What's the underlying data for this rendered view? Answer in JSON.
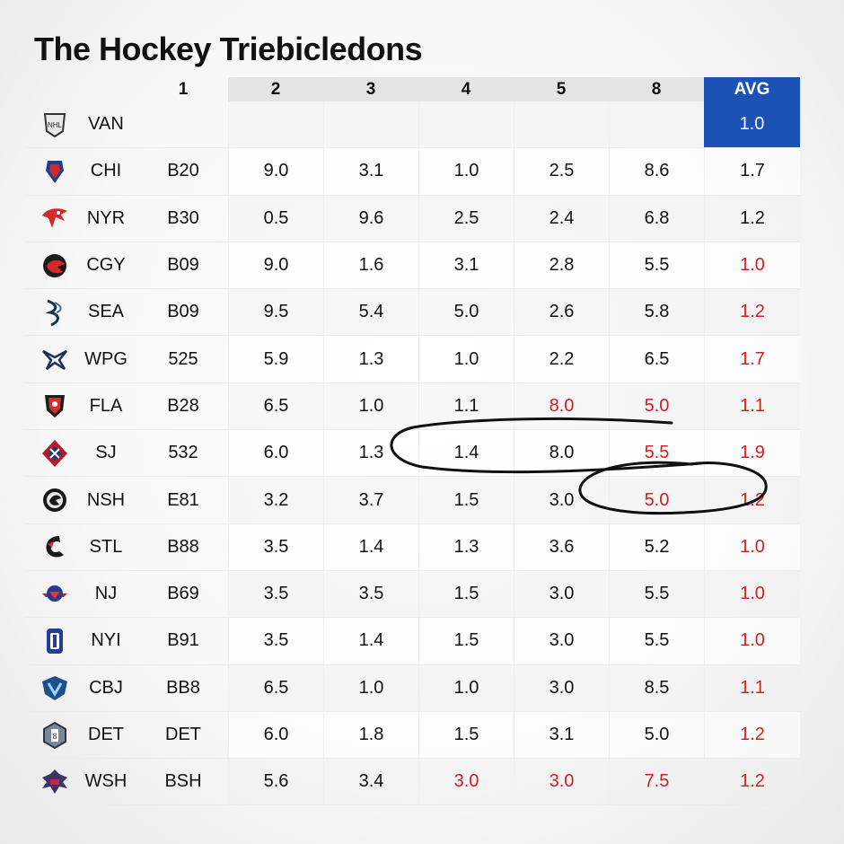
{
  "title": "The Hockey Triebicledons",
  "columns": [
    "1",
    "2",
    "3",
    "4",
    "5",
    "8",
    "AVG"
  ],
  "colors": {
    "accent": "#1b52b5",
    "highlight_red": "#d21f1f",
    "ink": "#111111"
  },
  "header_team": {
    "abbr": "VAN",
    "avg": "1.0",
    "logo_icon": "league-shield-icon"
  },
  "rows": [
    {
      "abbr": "CHI",
      "code": "B20",
      "values": [
        "9.0",
        "3.1",
        "1.0",
        "2.5",
        "8.6"
      ],
      "avg": "1.7",
      "red": [],
      "avg_red": false,
      "logo_icon": "chi-logo-icon"
    },
    {
      "abbr": "NYR",
      "code": "B30",
      "values": [
        "0.5",
        "9.6",
        "2.5",
        "2.4",
        "6.8"
      ],
      "avg": "1.2",
      "red": [],
      "avg_red": false,
      "logo_icon": "nyr-logo-icon"
    },
    {
      "abbr": "CGY",
      "code": "B09",
      "values": [
        "9.0",
        "1.6",
        "3.1",
        "2.8",
        "5.5"
      ],
      "avg": "1.0",
      "red": [],
      "avg_red": true,
      "logo_icon": "cgy-logo-icon"
    },
    {
      "abbr": "SEA",
      "code": "B09",
      "values": [
        "9.5",
        "5.4",
        "5.0",
        "2.6",
        "5.8"
      ],
      "avg": "1.2",
      "red": [],
      "avg_red": true,
      "logo_icon": "sea-logo-icon"
    },
    {
      "abbr": "WPG",
      "code": "525",
      "values": [
        "5.9",
        "1.3",
        "1.0",
        "2.2",
        "6.5"
      ],
      "avg": "1.7",
      "red": [],
      "avg_red": true,
      "logo_icon": "wpg-logo-icon"
    },
    {
      "abbr": "FLA",
      "code": "B28",
      "values": [
        "6.5",
        "1.0",
        "1.1",
        "8.0",
        "5.0"
      ],
      "avg": "1.1",
      "red": [
        3,
        4
      ],
      "avg_red": true,
      "logo_icon": "fla-logo-icon"
    },
    {
      "abbr": "SJ",
      "code": "532",
      "values": [
        "6.0",
        "1.3",
        "1.4",
        "8.0",
        "5.5"
      ],
      "avg": "1.9",
      "red": [
        4
      ],
      "avg_red": true,
      "logo_icon": "sj-logo-icon"
    },
    {
      "abbr": "NSH",
      "code": "E81",
      "values": [
        "3.2",
        "3.7",
        "1.5",
        "3.0",
        "5.0"
      ],
      "avg": "1.2",
      "red": [
        4
      ],
      "avg_red": true,
      "logo_icon": "nsh-logo-icon"
    },
    {
      "abbr": "STL",
      "code": "B88",
      "values": [
        "3.5",
        "1.4",
        "1.3",
        "3.6",
        "5.2"
      ],
      "avg": "1.0",
      "red": [],
      "avg_red": true,
      "logo_icon": "stl-logo-icon"
    },
    {
      "abbr": "NJ",
      "code": "B69",
      "values": [
        "3.5",
        "3.5",
        "1.5",
        "3.0",
        "5.5"
      ],
      "avg": "1.0",
      "red": [],
      "avg_red": true,
      "logo_icon": "nj-logo-icon"
    },
    {
      "abbr": "NYI",
      "code": "B91",
      "values": [
        "3.5",
        "1.4",
        "1.5",
        "3.0",
        "5.5"
      ],
      "avg": "1.0",
      "red": [],
      "avg_red": true,
      "logo_icon": "nyi-logo-icon"
    },
    {
      "abbr": "CBJ",
      "code": "BB8",
      "values": [
        "6.5",
        "1.0",
        "1.0",
        "3.0",
        "8.5"
      ],
      "avg": "1.1",
      "red": [],
      "avg_red": true,
      "logo_icon": "cbj-logo-icon"
    },
    {
      "abbr": "DET",
      "code": "DET",
      "values": [
        "6.0",
        "1.8",
        "1.5",
        "3.1",
        "5.0"
      ],
      "avg": "1.2",
      "red": [],
      "avg_red": true,
      "logo_icon": "det-logo-icon"
    },
    {
      "abbr": "WSH",
      "code": "BSH",
      "values": [
        "5.6",
        "3.4",
        "3.0",
        "3.0",
        "7.5"
      ],
      "avg": "1.2",
      "red": [
        2,
        3,
        4
      ],
      "avg_red": true,
      "logo_icon": "wsh-logo-icon"
    }
  ]
}
